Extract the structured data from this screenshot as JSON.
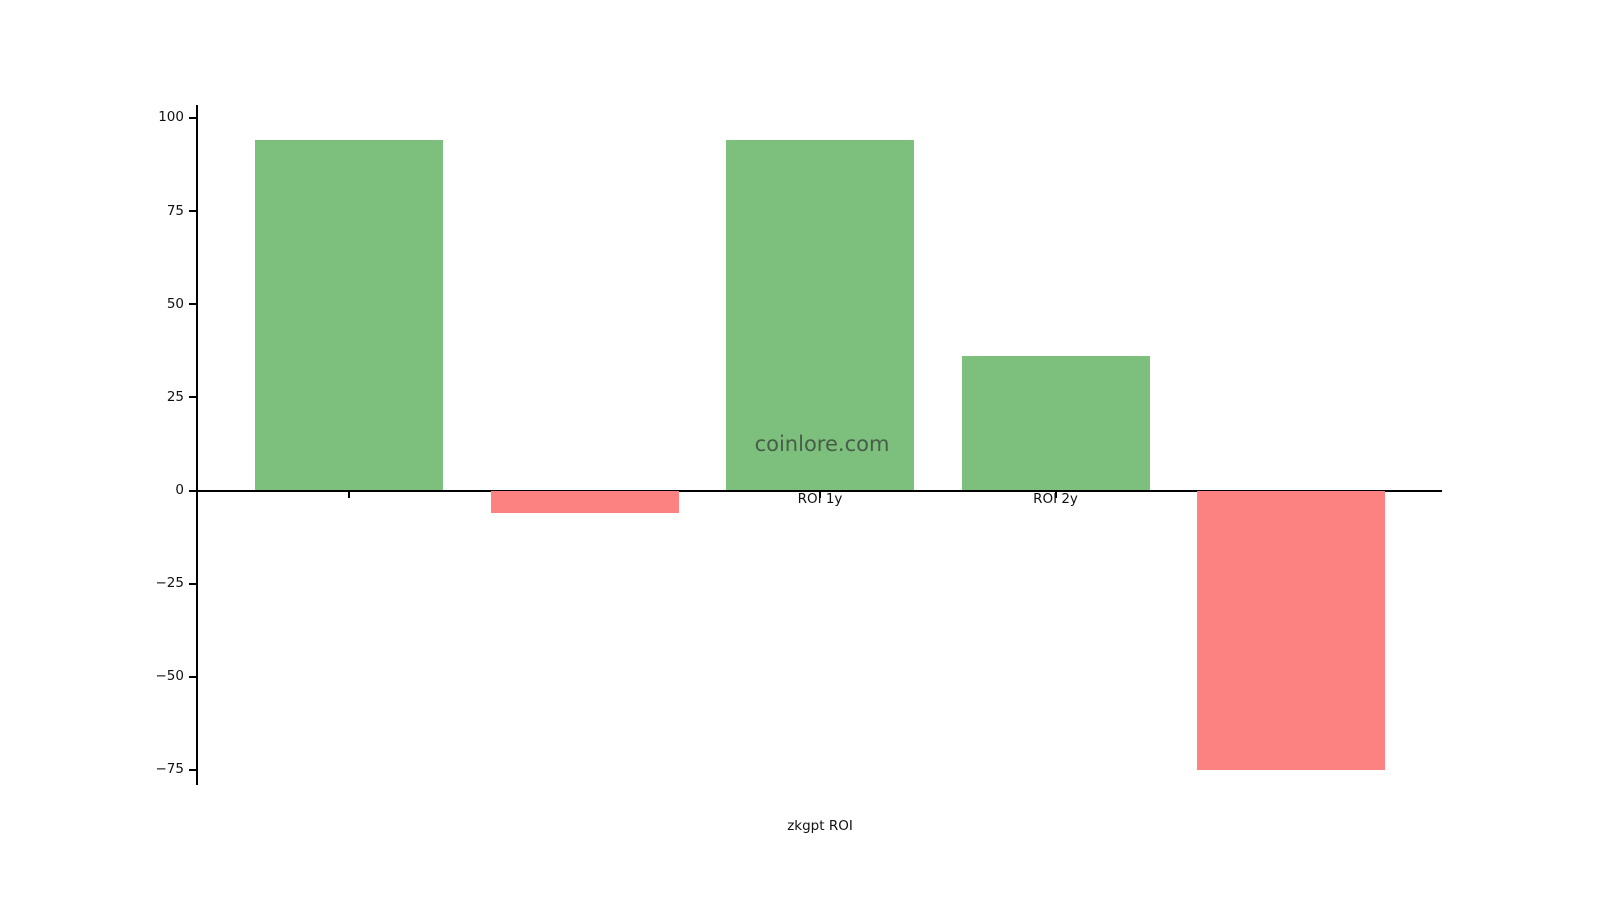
{
  "watermark": {
    "text": "coinlore.com",
    "color": "rgba(45,45,45,0.68)"
  },
  "chart_data": {
    "type": "bar",
    "title": "",
    "xlabel": "zkgpt ROI",
    "ylabel": "",
    "categories": [
      "",
      "",
      "ROI 1y",
      "ROI 2y",
      ""
    ],
    "values": [
      94,
      -6,
      94,
      36,
      -75
    ],
    "ylim": [
      -79,
      103
    ],
    "ytick_values": [
      100,
      75,
      50,
      25,
      0,
      -25,
      -50,
      -75
    ],
    "ytick_labels": [
      "100",
      "75",
      "50",
      "25",
      "0",
      "−25",
      "−50",
      "−75"
    ],
    "grid": false,
    "legend": "none",
    "bar_color_positive": "#7dc07d",
    "bar_color_negative": "#fc8181",
    "axis_color": "#000000"
  }
}
